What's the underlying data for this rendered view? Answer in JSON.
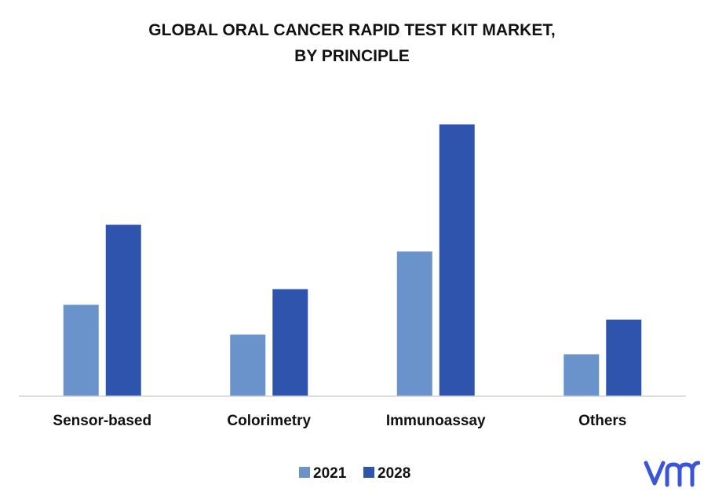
{
  "chart_data": {
    "type": "bar",
    "title_line1": "GLOBAL ORAL CANCER RAPID TEST KIT MARKET,",
    "title_line2": "BY PRINCIPLE",
    "categories": [
      "Sensor-based",
      "Colorimetry",
      "Immunoassay",
      "Others"
    ],
    "series": [
      {
        "name": "2021",
        "values": [
          117,
          79,
          185,
          54
        ],
        "color": "#6a93cb"
      },
      {
        "name": "2028",
        "values": [
          219,
          137,
          347,
          98
        ],
        "color": "#2f54ae"
      }
    ],
    "ylim": [
      0,
      360
    ],
    "xlabel": "",
    "ylabel": "",
    "grid": false,
    "legend_position": "bottom"
  },
  "logo": {
    "icon": "vmr-logo-icon",
    "color": "#3b55d9"
  }
}
